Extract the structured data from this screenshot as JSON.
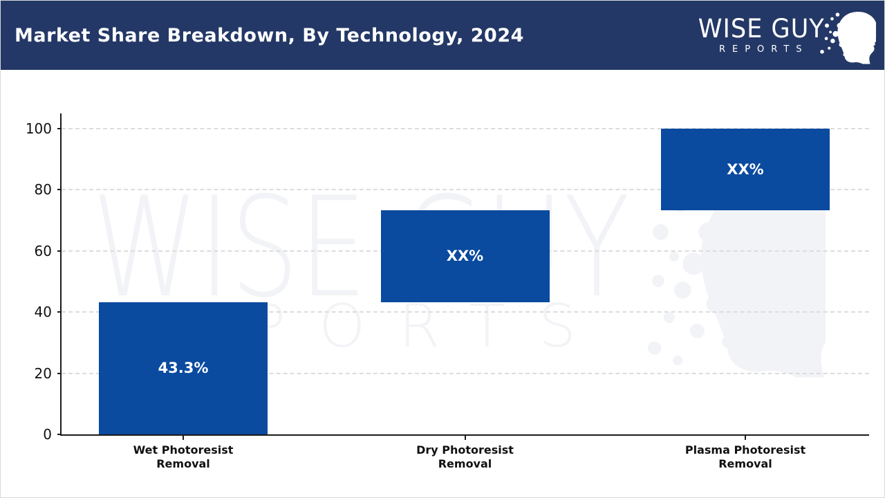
{
  "header": {
    "title": "Market Share Breakdown, By Technology, 2024",
    "bg_color": "#233866",
    "logo": {
      "wordmark": "WISE GUY",
      "subtitle": "REPORTS"
    }
  },
  "watermark": {
    "line1": "WISE GUY",
    "line2": "REPORTS",
    "color": "#f2f3f6"
  },
  "chart_data": {
    "type": "bar",
    "subtype": "stacked-waterfall",
    "title": "Market Share Breakdown, By Technology, 2024",
    "categories": [
      [
        "Wet Photoresist",
        "Removal"
      ],
      [
        "Dry Photoresist",
        "Removal"
      ],
      [
        "Plasma Photoresist",
        "Removal"
      ]
    ],
    "segments": [
      {
        "category": "Wet Photoresist Removal",
        "start": 0,
        "end": 43.3,
        "label": "43.3%"
      },
      {
        "category": "Dry Photoresist Removal",
        "start": 43.3,
        "end": 73.3,
        "label": "XX%"
      },
      {
        "category": "Plasma Photoresist Removal",
        "start": 73.3,
        "end": 100,
        "label": "XX%"
      }
    ],
    "yticks": [
      0,
      20,
      40,
      60,
      80,
      100
    ],
    "ylim": [
      0,
      105
    ],
    "xlabel": "",
    "ylabel": "",
    "grid": {
      "axis": "y",
      "style": "dashed",
      "color": "#dcdcdc"
    },
    "legend": null,
    "bar_color": "#0a4a9f",
    "bar_label_color": "#ffffff"
  }
}
